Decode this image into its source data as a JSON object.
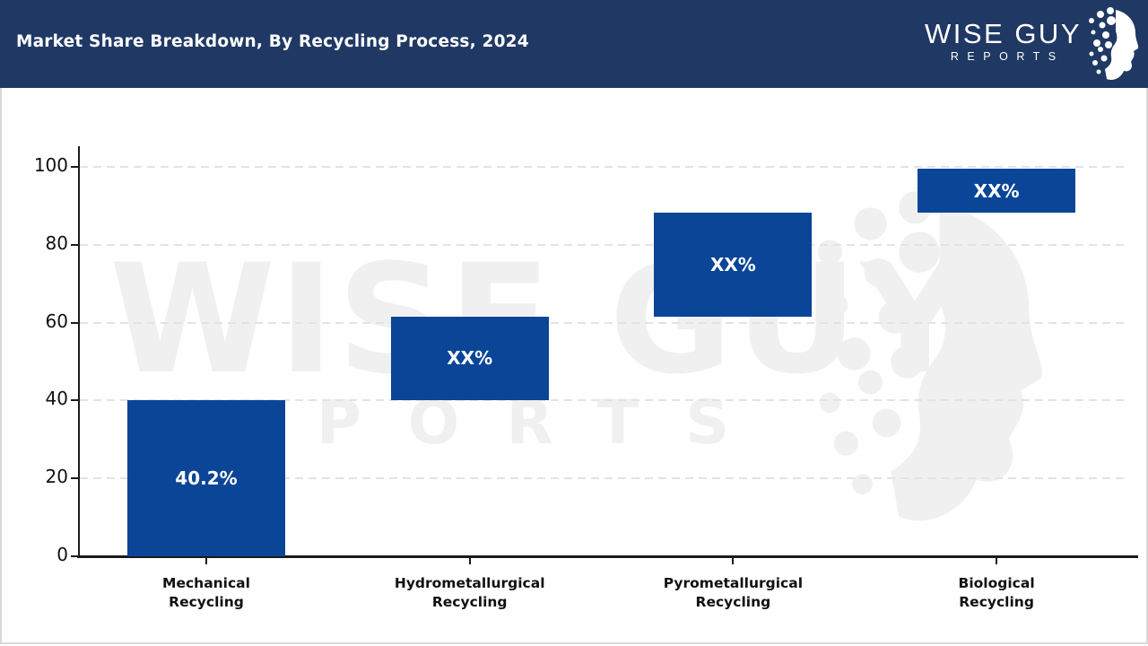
{
  "header": {
    "title": "Market Share Breakdown, By Recycling Process, 2024",
    "bg_color": "#203864",
    "brand": {
      "line1": "WISE GUY",
      "line2": "REPORTS"
    }
  },
  "watermark": {
    "line1": "WISE GUY",
    "line2": "REPORTS"
  },
  "chart_data": {
    "type": "bar",
    "subtype": "waterfall",
    "title": "Market Share Breakdown, By Recycling Process, 2024",
    "categories": [
      [
        "Mechanical",
        "Recycling"
      ],
      [
        "Hydrometallurgical",
        "Recycling"
      ],
      [
        "Pyrometallurgical",
        "Recycling"
      ],
      [
        "Biological",
        "Recycling"
      ]
    ],
    "segments": [
      {
        "category": "Mechanical Recycling",
        "start": 0,
        "end": 40.2,
        "label": "40.2%"
      },
      {
        "category": "Hydrometallurgical Recycling",
        "start": 40.2,
        "end": 61.5,
        "label": "XX%"
      },
      {
        "category": "Pyrometallurgical Recycling",
        "start": 61.5,
        "end": 88.2,
        "label": "XX%"
      },
      {
        "category": "Biological Recycling",
        "start": 88.2,
        "end": 99.5,
        "label": "XX%"
      }
    ],
    "yticks": [
      0,
      20,
      40,
      60,
      80,
      100
    ],
    "ylim": [
      0,
      105
    ],
    "xlabel": "",
    "ylabel": "",
    "grid": "horizontal-dashed",
    "legend": "none",
    "bar_color": "#0b4597",
    "bar_label_color": "#ffffff",
    "axis_color": "#1a1a1a"
  }
}
